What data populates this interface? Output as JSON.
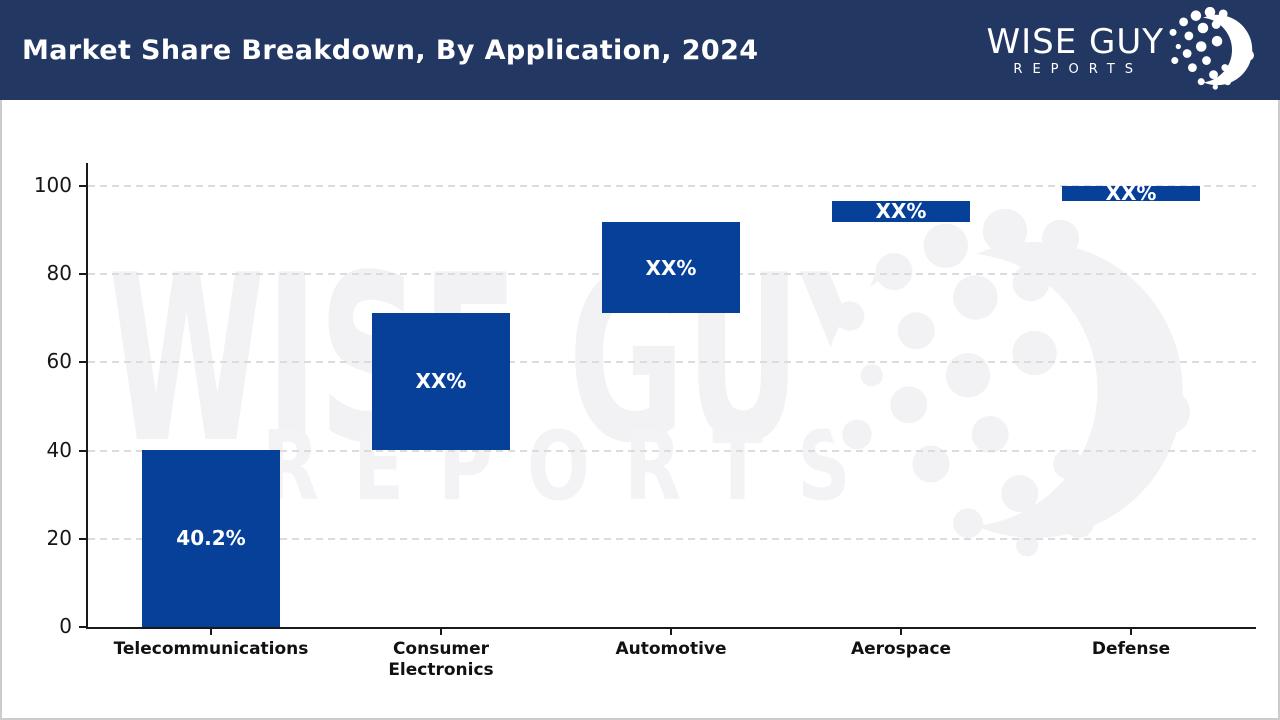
{
  "header": {
    "title": "Market Share Breakdown, By Application, 2024",
    "logo": {
      "line1": "WISE GUY",
      "line2": "REPORTS"
    },
    "background_color": "#223862"
  },
  "watermark": {
    "line1": "WISE GUY",
    "line2": "REPORTS"
  },
  "chart_data": {
    "type": "bar",
    "subtype": "waterfall-stacked-steps",
    "title": "Market Share Breakdown, By Application, 2024",
    "categories": [
      "Telecommunications",
      "Consumer Electronics",
      "Automotive",
      "Aerospace",
      "Defense"
    ],
    "tick_labels": [
      "Telecommunications",
      "Consumer\nElectronics",
      "Automotive",
      "Aerospace",
      "Defense"
    ],
    "segments": [
      {
        "category": "Telecommunications",
        "start": 0,
        "end": 40.2,
        "label": "40.2%"
      },
      {
        "category": "Consumer Electronics",
        "start": 40.2,
        "end": 71.2,
        "label": "XX%"
      },
      {
        "category": "Automotive",
        "start": 71.2,
        "end": 91.8,
        "label": "XX%"
      },
      {
        "category": "Aerospace",
        "start": 91.8,
        "end": 96.7,
        "label": "XX%"
      },
      {
        "category": "Defense",
        "start": 96.7,
        "end": 100,
        "label": "XX%"
      }
    ],
    "ylim": [
      0,
      100
    ],
    "yticks": [
      0,
      20,
      40,
      60,
      80,
      100
    ],
    "xlabel": "",
    "ylabel": "",
    "grid": "horizontal-dashed",
    "legend": "none",
    "bar_color": "#064099",
    "bar_label_color": "#ffffff",
    "axis_color": "#1a1a1a",
    "gridline_color": "#dcdcdc"
  }
}
